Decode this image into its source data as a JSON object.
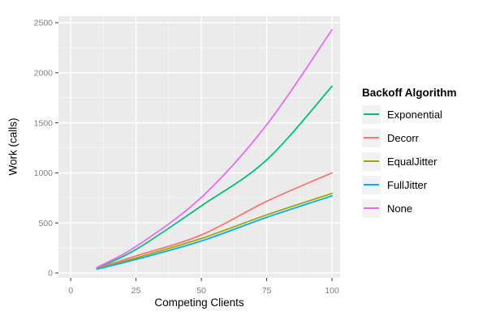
{
  "chart_data": {
    "type": "line",
    "title": "",
    "xlabel": "Competing Clients",
    "ylabel": "Work (calls)",
    "legend_title": "Backoff Algorithm",
    "legend_position": "right",
    "grid": true,
    "x": [
      10,
      25,
      50,
      75,
      100
    ],
    "x_axis": {
      "ticks": [
        0,
        25,
        50,
        75,
        100
      ],
      "minor": [
        12.5,
        37.5,
        62.5,
        87.5
      ],
      "range": [
        -4.7,
        103.1
      ]
    },
    "y_axis": {
      "ticks": [
        0,
        500,
        1000,
        1500,
        2000,
        2500
      ],
      "minor": [
        250,
        750,
        1250,
        1750,
        2250
      ],
      "range": [
        -48.5,
        2565
      ]
    },
    "series": [
      {
        "name": "Exponential",
        "color": "#00BF7D",
        "values": [
          50,
          235,
          670,
          1130,
          1865
        ]
      },
      {
        "name": "Decorr",
        "color": "#F8766D",
        "values": [
          45,
          170,
          380,
          715,
          1000
        ]
      },
      {
        "name": "EqualJitter",
        "color": "#A3A500",
        "values": [
          40,
          150,
          345,
          580,
          795
        ]
      },
      {
        "name": "FullJitter",
        "color": "#00B0F6",
        "values": [
          38,
          135,
          320,
          555,
          770
        ]
      },
      {
        "name": "None",
        "color": "#E76BF3",
        "values": [
          55,
          265,
          755,
          1480,
          2430
        ]
      }
    ]
  },
  "colors": {
    "panel_background": "#EBEBEB",
    "grid_major": "#FFFFFF",
    "grid_minor": "#FFFFFF",
    "tick_mark": "#333333",
    "tick_label": "#7F7F7F",
    "legend_key_background": "#F2F2F2"
  }
}
